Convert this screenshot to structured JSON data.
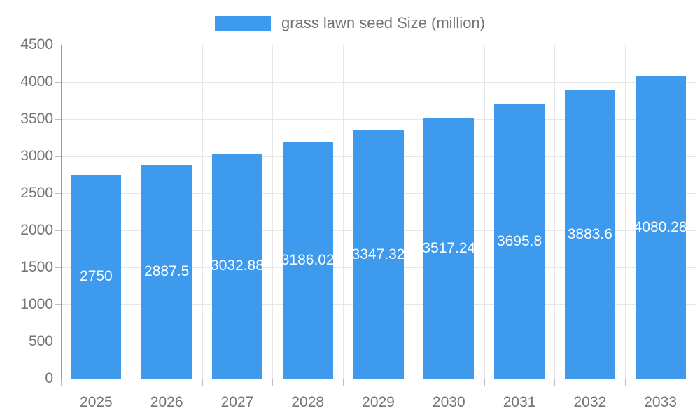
{
  "legend": {
    "label": "grass lawn seed Size (million)"
  },
  "chart_data": {
    "type": "bar",
    "title": "",
    "series_name": "grass lawn seed Size (million)",
    "categories": [
      "2025",
      "2026",
      "2027",
      "2028",
      "2029",
      "2030",
      "2031",
      "2032",
      "2033"
    ],
    "values": [
      2750,
      2887.5,
      3032.88,
      3186.02,
      3347.32,
      3517.24,
      3695.8,
      3883.6,
      4080.28
    ],
    "value_labels": [
      "2750",
      "2887.5",
      "3032.88",
      "3186.02",
      "3347.32",
      "3517.24",
      "3695.8",
      "3883.6",
      "4080.28"
    ],
    "xlabel": "",
    "ylabel": "",
    "ylim": [
      0,
      4500
    ],
    "y_ticks": [
      0,
      500,
      1000,
      1500,
      2000,
      2500,
      3000,
      3500,
      4000,
      4500
    ],
    "grid": true,
    "legend_position": "top-center",
    "value_label_position": "inside-middle",
    "colors": {
      "bar": "#3D9AEC",
      "value_text": "#FFFFFF",
      "axis_text": "#757575",
      "grid_line": "#E6E6E6",
      "axis_line": "#9A9A9A",
      "tick_line": "#BDBDBD",
      "background": "#FFFFFF"
    }
  }
}
